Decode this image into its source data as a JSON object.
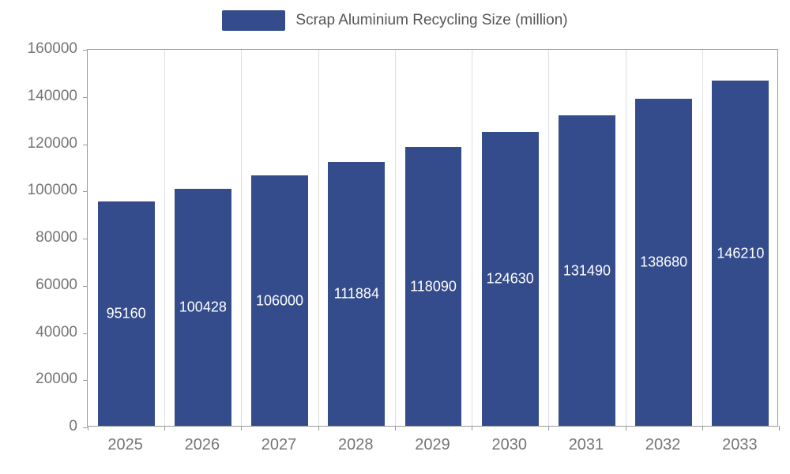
{
  "legend": {
    "label": "Scrap Aluminium Recycling Size (million)",
    "swatch_color": "#344c8c"
  },
  "chart_data": {
    "type": "bar",
    "title": "Scrap Aluminium Recycling Size (million)",
    "categories": [
      "2025",
      "2026",
      "2027",
      "2028",
      "2029",
      "2030",
      "2031",
      "2032",
      "2033"
    ],
    "values": [
      95160,
      100428,
      106000,
      111884,
      118090,
      124630,
      131490,
      138680,
      146210
    ],
    "xlabel": "",
    "ylabel": "",
    "ylim": [
      0,
      160000
    ],
    "ytick_step": 20000,
    "bar_color": "#344c8c",
    "value_label_color": "#ffffff",
    "axis_label_color": "#757575",
    "grid": "vertical",
    "legend_position": "top-center"
  }
}
